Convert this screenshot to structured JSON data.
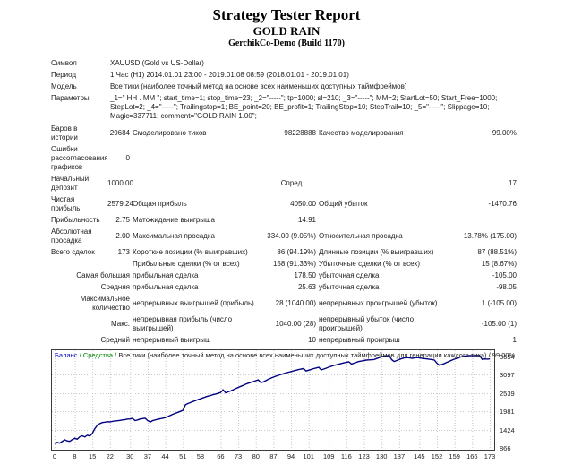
{
  "header": {
    "title": "Strategy Tester Report",
    "ea_name": "GOLD RAIN",
    "server": "GerchikCo-Demo (Build 1170)"
  },
  "info_rows": [
    {
      "label": "Символ",
      "value": "XAUUSD (Gold vs US-Dollar)"
    },
    {
      "label": "Период",
      "value": "1 Час (H1) 2014.01.01 23:00 - 2019.01.08 08:59 (2018.01.01 - 2019.01.01)"
    },
    {
      "label": "Модель",
      "value": "Все тики (наиболее точный метод на основе всех наименьших доступных таймфреймов)"
    },
    {
      "label": "Параметры",
      "value": "_1=\" HH . MM \"; start_time=1; stop_time=23; _2=\"-----\"; tp=1000; sl=210; _3=\"-----\"; MM=2; StartLot=50; Start_Free=1000; StepLot=2; _4=\"-----\"; Trailingstop=1; BE_point=20; BE_profit=1; TrailingStop=10; StepTrail=10; _5=\"-----\"; Slippage=10; Magic=337711; comment=\"GOLD RAIN 1.00\";"
    }
  ],
  "stats_rows": [
    {
      "cells": [
        {
          "t": "Баров в истории",
          "w": 1,
          "al": "l"
        },
        {
          "t": "29684",
          "w": 1,
          "al": "r"
        },
        {
          "t": "Смоделировано тиков",
          "w": 1,
          "al": "l"
        },
        {
          "t": "98228888",
          "w": 1,
          "al": "r"
        },
        {
          "t": "Качество моделирования",
          "w": 1,
          "al": "l"
        },
        {
          "t": "99.00%",
          "w": 1,
          "al": "r"
        }
      ]
    },
    {
      "cells": [
        {
          "t": "Ошибки рассогласования графиков",
          "w": 1,
          "al": "l"
        },
        {
          "t": "0",
          "w": 1,
          "al": "r"
        },
        {
          "t": "",
          "w": 1,
          "al": "l"
        },
        {
          "t": "",
          "w": 1,
          "al": "l"
        },
        {
          "t": "",
          "w": 1,
          "al": "l"
        },
        {
          "t": "",
          "w": 1,
          "al": "l"
        }
      ]
    },
    {
      "cells": [
        {
          "t": "Начальный депозит",
          "w": 1,
          "al": "l"
        },
        {
          "t": "1000.00",
          "w": 1,
          "al": "r"
        },
        {
          "t": "",
          "w": 1,
          "al": "l"
        },
        {
          "t": "Спред",
          "w": 1,
          "al": "c"
        },
        {
          "t": "",
          "w": 1,
          "al": "l"
        },
        {
          "t": "17",
          "w": 1,
          "al": "r"
        }
      ]
    },
    {
      "cells": [
        {
          "t": "Чистая прибыль",
          "w": 1,
          "al": "l"
        },
        {
          "t": "2579.24",
          "w": 1,
          "al": "r"
        },
        {
          "t": "Общая прибыль",
          "w": 1,
          "al": "l"
        },
        {
          "t": "4050.00",
          "w": 1,
          "al": "r"
        },
        {
          "t": "Общий убыток",
          "w": 1,
          "al": "l"
        },
        {
          "t": "-1470.76",
          "w": 1,
          "al": "r"
        }
      ]
    },
    {
      "cells": [
        {
          "t": "Прибыльность",
          "w": 1,
          "al": "l"
        },
        {
          "t": "2.75",
          "w": 1,
          "al": "r"
        },
        {
          "t": "Матожидание выигрыша",
          "w": 1,
          "al": "l"
        },
        {
          "t": "14.91",
          "w": 1,
          "al": "r"
        },
        {
          "t": "",
          "w": 1,
          "al": "l"
        },
        {
          "t": "",
          "w": 1,
          "al": "l"
        }
      ]
    },
    {
      "cells": [
        {
          "t": "Абсолютная просадка",
          "w": 1,
          "al": "l"
        },
        {
          "t": "2.00",
          "w": 1,
          "al": "r"
        },
        {
          "t": "Максимальная просадка",
          "w": 1,
          "al": "l"
        },
        {
          "t": "334.00 (9.05%)",
          "w": 1,
          "al": "r"
        },
        {
          "t": "Относительная просадка",
          "w": 1,
          "al": "l"
        },
        {
          "t": "13.78% (175.00)",
          "w": 1,
          "al": "r"
        }
      ]
    },
    {
      "cells": [
        {
          "t": "Всего сделок",
          "w": 1,
          "al": "l"
        },
        {
          "t": "173",
          "w": 1,
          "al": "r"
        },
        {
          "t": "Короткие позиции (% выигравших)",
          "w": 1,
          "al": "l"
        },
        {
          "t": "86 (94.19%)",
          "w": 1,
          "al": "r"
        },
        {
          "t": "Длинные позиции (% выигравших)",
          "w": 1,
          "al": "l"
        },
        {
          "t": "87 (88.51%)",
          "w": 1,
          "al": "r"
        }
      ]
    },
    {
      "cells": [
        {
          "t": "",
          "w": 2,
          "al": "r"
        },
        {
          "t": "Прибыльные сделки (% от всех)",
          "w": 1,
          "al": "l"
        },
        {
          "t": "158 (91.33%)",
          "w": 1,
          "al": "r"
        },
        {
          "t": "Убыточные сделки (% от всех)",
          "w": 1,
          "al": "l"
        },
        {
          "t": "15 (8.67%)",
          "w": 1,
          "al": "r"
        }
      ]
    },
    {
      "cells": [
        {
          "t": "Самая большая",
          "w": 2,
          "al": "r"
        },
        {
          "t": "прибыльная сделка",
          "w": 1,
          "al": "l"
        },
        {
          "t": "178.50",
          "w": 1,
          "al": "r"
        },
        {
          "t": "убыточная сделка",
          "w": 1,
          "al": "l"
        },
        {
          "t": "-105.00",
          "w": 1,
          "al": "r"
        }
      ]
    },
    {
      "cells": [
        {
          "t": "Средняя",
          "w": 2,
          "al": "r"
        },
        {
          "t": "прибыльная сделка",
          "w": 1,
          "al": "l"
        },
        {
          "t": "25.63",
          "w": 1,
          "al": "r"
        },
        {
          "t": "убыточная сделка",
          "w": 1,
          "al": "l"
        },
        {
          "t": "-98.05",
          "w": 1,
          "al": "r"
        }
      ]
    },
    {
      "cells": [
        {
          "t": "Максимальное количество",
          "w": 2,
          "al": "r"
        },
        {
          "t": "непрерывных выигрышей (прибыль)",
          "w": 1,
          "al": "l"
        },
        {
          "t": "28 (1040.00)",
          "w": 1,
          "al": "r"
        },
        {
          "t": "непрерывных проигрышей (убыток)",
          "w": 1,
          "al": "l"
        },
        {
          "t": "1 (-105.00)",
          "w": 1,
          "al": "r"
        }
      ]
    },
    {
      "cells": [
        {
          "t": "Макс.",
          "w": 2,
          "al": "r"
        },
        {
          "t": "непрерывная прибыль (число выигрышей)",
          "w": 1,
          "al": "l"
        },
        {
          "t": "1040.00 (28)",
          "w": 1,
          "al": "r"
        },
        {
          "t": "непрерывный убыток (число проигрышей)",
          "w": 1,
          "al": "l"
        },
        {
          "t": "-105.00 (1)",
          "w": 1,
          "al": "r"
        }
      ]
    },
    {
      "cells": [
        {
          "t": "Средний",
          "w": 2,
          "al": "r"
        },
        {
          "t": "непрерывный выигрыш",
          "w": 1,
          "al": "l"
        },
        {
          "t": "10",
          "w": 1,
          "al": "r"
        },
        {
          "t": "непрерывный проигрыш",
          "w": 1,
          "al": "l"
        },
        {
          "t": "1",
          "w": 1,
          "al": "r"
        }
      ]
    }
  ],
  "chart_data": {
    "type": "line",
    "legend": [
      {
        "label": "Баланс",
        "color": "#0000c8"
      },
      {
        "label": "Средства",
        "color": "#008000"
      }
    ],
    "legend_note": "Все тики (наиболее точный метод на основе всех наименьших доступных таймфреймов для генерации каждого тика)",
    "legend_quality": "99.00%",
    "separator": "/",
    "separator_color": "#008000",
    "note_color": "#222222",
    "line_color": "#000080",
    "grid_color": "#c8c8c8",
    "xlabel": "",
    "ylabel": "",
    "xlim": [
      0,
      173
    ],
    "ylim": [
      811,
      3845
    ],
    "grid": true,
    "legend_position": "top-left",
    "x_ticks": [
      0,
      8,
      15,
      22,
      30,
      37,
      44,
      51,
      58,
      66,
      73,
      80,
      87,
      94,
      101,
      109,
      116,
      123,
      130,
      137,
      145,
      152,
      159,
      166,
      173
    ],
    "y_ticks": [
      3654,
      3097,
      2539,
      1981,
      1424,
      866
    ],
    "series": [
      {
        "name": "Баланс",
        "points": [
          [
            0,
            1000
          ],
          [
            1,
            1035
          ],
          [
            2,
            1010
          ],
          [
            3,
            1060
          ],
          [
            4,
            1115
          ],
          [
            5,
            1080
          ],
          [
            6,
            1065
          ],
          [
            7,
            1120
          ],
          [
            8,
            1160
          ],
          [
            9,
            1130
          ],
          [
            10,
            1205
          ],
          [
            11,
            1235
          ],
          [
            12,
            1200
          ],
          [
            13,
            1255
          ],
          [
            14,
            1230
          ],
          [
            15,
            1305
          ],
          [
            16,
            1450
          ],
          [
            17,
            1560
          ],
          [
            18,
            1610
          ],
          [
            19,
            1640
          ],
          [
            20,
            1650
          ],
          [
            21,
            1665
          ],
          [
            22,
            1660
          ],
          [
            23,
            1675
          ],
          [
            24,
            1690
          ],
          [
            25,
            1695
          ],
          [
            26,
            1705
          ],
          [
            27,
            1720
          ],
          [
            28,
            1730
          ],
          [
            29,
            1745
          ],
          [
            30,
            1750
          ],
          [
            31,
            1765
          ],
          [
            32,
            1700
          ],
          [
            33,
            1720
          ],
          [
            34,
            1745
          ],
          [
            35,
            1760
          ],
          [
            36,
            1770
          ],
          [
            37,
            1700
          ],
          [
            38,
            1655
          ],
          [
            39,
            1700
          ],
          [
            40,
            1720
          ],
          [
            41,
            1740
          ],
          [
            42,
            1755
          ],
          [
            43,
            1770
          ],
          [
            44,
            1790
          ],
          [
            45,
            1820
          ],
          [
            46,
            1855
          ],
          [
            47,
            1890
          ],
          [
            48,
            1920
          ],
          [
            49,
            1950
          ],
          [
            50,
            1980
          ],
          [
            51,
            2010
          ],
          [
            52,
            2180
          ],
          [
            53,
            2220
          ],
          [
            54,
            2250
          ],
          [
            55,
            2280
          ],
          [
            56,
            2310
          ],
          [
            57,
            2340
          ],
          [
            58,
            2365
          ],
          [
            59,
            2390
          ],
          [
            60,
            2420
          ],
          [
            61,
            2445
          ],
          [
            62,
            2465
          ],
          [
            63,
            2490
          ],
          [
            64,
            2510
          ],
          [
            65,
            2530
          ],
          [
            66,
            2555
          ],
          [
            67,
            2640
          ],
          [
            68,
            2545
          ],
          [
            69,
            2575
          ],
          [
            70,
            2605
          ],
          [
            71,
            2640
          ],
          [
            72,
            2675
          ],
          [
            73,
            2710
          ],
          [
            74,
            2745
          ],
          [
            75,
            2775
          ],
          [
            76,
            2810
          ],
          [
            77,
            2840
          ],
          [
            78,
            2865
          ],
          [
            79,
            2890
          ],
          [
            80,
            2915
          ],
          [
            81,
            2940
          ],
          [
            82,
            2855
          ],
          [
            83,
            2880
          ],
          [
            84,
            2920
          ],
          [
            85,
            2960
          ],
          [
            86,
            2995
          ],
          [
            87,
            3025
          ],
          [
            88,
            3055
          ],
          [
            89,
            3080
          ],
          [
            90,
            3105
          ],
          [
            91,
            3130
          ],
          [
            92,
            3155
          ],
          [
            93,
            3175
          ],
          [
            94,
            3195
          ],
          [
            95,
            3215
          ],
          [
            96,
            3235
          ],
          [
            97,
            3255
          ],
          [
            98,
            3270
          ],
          [
            99,
            3285
          ],
          [
            100,
            3210
          ],
          [
            101,
            3235
          ],
          [
            102,
            3260
          ],
          [
            103,
            3285
          ],
          [
            104,
            3305
          ],
          [
            105,
            3325
          ],
          [
            106,
            3245
          ],
          [
            107,
            3270
          ],
          [
            108,
            3300
          ],
          [
            109,
            3330
          ],
          [
            110,
            3355
          ],
          [
            111,
            3380
          ],
          [
            112,
            3400
          ],
          [
            113,
            3420
          ],
          [
            114,
            3440
          ],
          [
            115,
            3460
          ],
          [
            116,
            3475
          ],
          [
            117,
            3490
          ],
          [
            118,
            3425
          ],
          [
            119,
            3450
          ],
          [
            120,
            3475
          ],
          [
            121,
            3500
          ],
          [
            122,
            3515
          ],
          [
            123,
            3530
          ],
          [
            124,
            3545
          ],
          [
            125,
            3550
          ],
          [
            126,
            3555
          ],
          [
            127,
            3560
          ],
          [
            128,
            3590
          ],
          [
            129,
            3620
          ],
          [
            130,
            3645
          ],
          [
            131,
            3665
          ],
          [
            132,
            3675
          ],
          [
            133,
            3680
          ],
          [
            134,
            3560
          ],
          [
            135,
            3500
          ],
          [
            136,
            3530
          ],
          [
            137,
            3560
          ],
          [
            138,
            3590
          ],
          [
            139,
            3610
          ],
          [
            140,
            3620
          ],
          [
            141,
            3615
          ],
          [
            142,
            3600
          ],
          [
            143,
            3610
          ],
          [
            144,
            3620
          ],
          [
            145,
            3615
          ],
          [
            146,
            3600
          ],
          [
            147,
            3590
          ],
          [
            148,
            3580
          ],
          [
            149,
            3570
          ],
          [
            150,
            3560
          ],
          [
            151,
            3545
          ],
          [
            152,
            3450
          ],
          [
            153,
            3385
          ],
          [
            154,
            3410
          ],
          [
            155,
            3440
          ],
          [
            156,
            3475
          ],
          [
            157,
            3510
          ],
          [
            158,
            3545
          ],
          [
            159,
            3575
          ],
          [
            160,
            3605
          ],
          [
            161,
            3630
          ],
          [
            162,
            3650
          ],
          [
            163,
            3665
          ],
          [
            164,
            3675
          ],
          [
            165,
            3680
          ],
          [
            166,
            3678
          ],
          [
            167,
            3680
          ],
          [
            168,
            3682
          ],
          [
            169,
            3680
          ],
          [
            170,
            3565
          ],
          [
            171,
            3580
          ],
          [
            172,
            3575
          ],
          [
            173,
            3579
          ]
        ]
      }
    ]
  }
}
